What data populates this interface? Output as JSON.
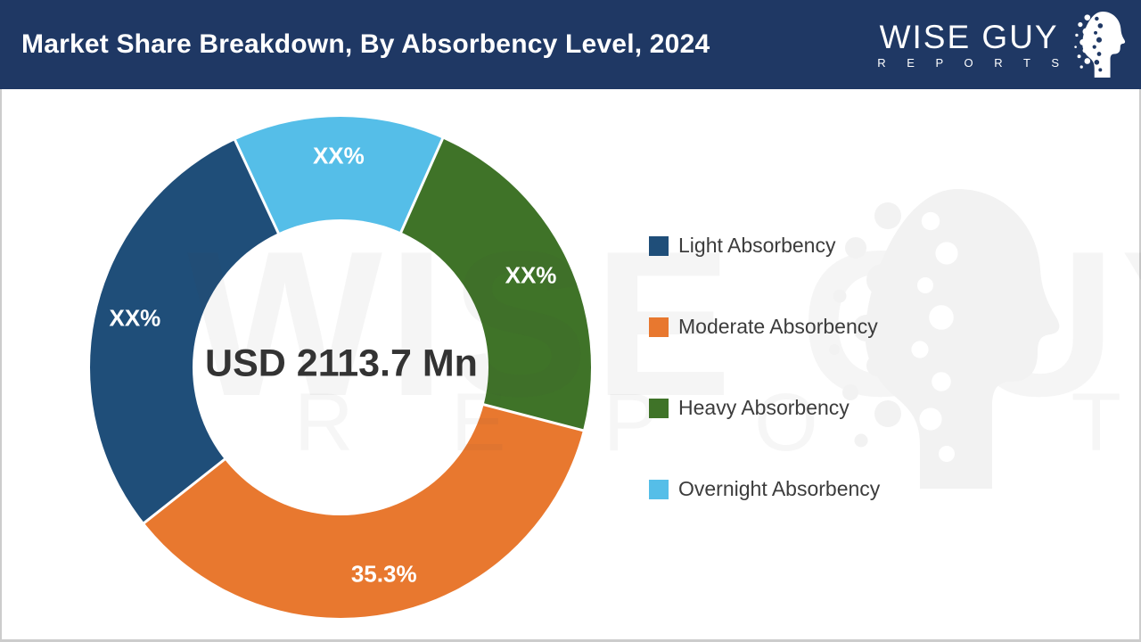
{
  "header": {
    "title": "Market Share Breakdown, By Absorbency Level, 2024",
    "bg_color": "#1F3864",
    "logo": {
      "line1": "WISE GUY",
      "line2": "R E P O R T S"
    }
  },
  "chart_data": {
    "type": "pie",
    "donut": true,
    "title": "Market Share Breakdown, By Absorbency Level, 2024",
    "center_label": "USD 2113.7 Mn",
    "legend_position": "right",
    "start_angle_deg": -25,
    "segments": [
      {
        "name": "Overnight Absorbency",
        "display_label": "XX%",
        "value_pct": 13.6,
        "color": "#55BEE8"
      },
      {
        "name": "Heavy Absorbency",
        "display_label": "XX%",
        "value_pct": 22.4,
        "color": "#3F7328"
      },
      {
        "name": "Moderate Absorbency",
        "display_label": "35.3%",
        "value_pct": 35.3,
        "color": "#E8782F"
      },
      {
        "name": "Light Absorbency",
        "display_label": "XX%",
        "value_pct": 28.7,
        "color": "#1F4E79"
      }
    ]
  },
  "legend": {
    "items": [
      {
        "label": "Light Absorbency",
        "color": "#1F4E79"
      },
      {
        "label": "Moderate Absorbency",
        "color": "#E8782F"
      },
      {
        "label": "Heavy Absorbency",
        "color": "#3F7328"
      },
      {
        "label": "Overnight Absorbency",
        "color": "#55BEE8"
      }
    ]
  },
  "watermark": {
    "line1": "WISE GUY",
    "line2": "R E P O R T S"
  }
}
